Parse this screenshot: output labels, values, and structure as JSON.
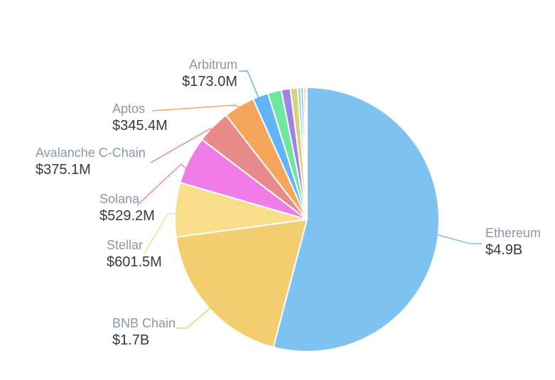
{
  "chart_data": {
    "type": "pie",
    "title": "",
    "legend": "none",
    "background_color": "#ffffff",
    "label_name_color": "#8B98A8",
    "label_value_color": "#333A45",
    "start_angle": "12 o'clock",
    "direction": "clockwise",
    "values_unit": "USD millions (estimated for unlabeled slivers)",
    "slices": [
      {
        "name": "Ethereum",
        "value_label": "$4.9B",
        "value": 4900,
        "color": "#7EC2F2",
        "labeled": true
      },
      {
        "name": "BNB Chain",
        "value_label": "$1.7B",
        "value": 1700,
        "color": "#F3CE71",
        "labeled": true
      },
      {
        "name": "Stellar",
        "value_label": "$601.5M",
        "value": 601.5,
        "color": "#F8DD8B",
        "labeled": true
      },
      {
        "name": "Solana",
        "value_label": "$529.2M",
        "value": 529.2,
        "color": "#EF7CE7",
        "labeled": true
      },
      {
        "name": "Avalanche C-Chain",
        "value_label": "$375.1M",
        "value": 375.1,
        "color": "#E88A8A",
        "labeled": true
      },
      {
        "name": "Aptos",
        "value_label": "$345.4M",
        "value": 345.4,
        "color": "#F6A65B",
        "labeled": true
      },
      {
        "name": "Arbitrum",
        "value_label": "$173.0M",
        "value": 173.0,
        "color": "#63B4F6",
        "labeled": true
      },
      {
        "name": "",
        "value": 150,
        "color": "#6FE7A2",
        "labeled": false
      },
      {
        "name": "",
        "value": 100,
        "color": "#9B84E4",
        "labeled": false
      },
      {
        "name": "",
        "value": 80,
        "color": "#D9D07F",
        "labeled": false
      },
      {
        "name": "",
        "value": 35,
        "color": "#7FE2B8",
        "labeled": false
      },
      {
        "name": "",
        "value": 28,
        "color": "#7FABF0",
        "labeled": false
      },
      {
        "name": "",
        "value": 22,
        "color": "#F09EB4",
        "labeled": false
      },
      {
        "name": "",
        "value": 18,
        "color": "#E25D5D",
        "labeled": false
      }
    ]
  }
}
